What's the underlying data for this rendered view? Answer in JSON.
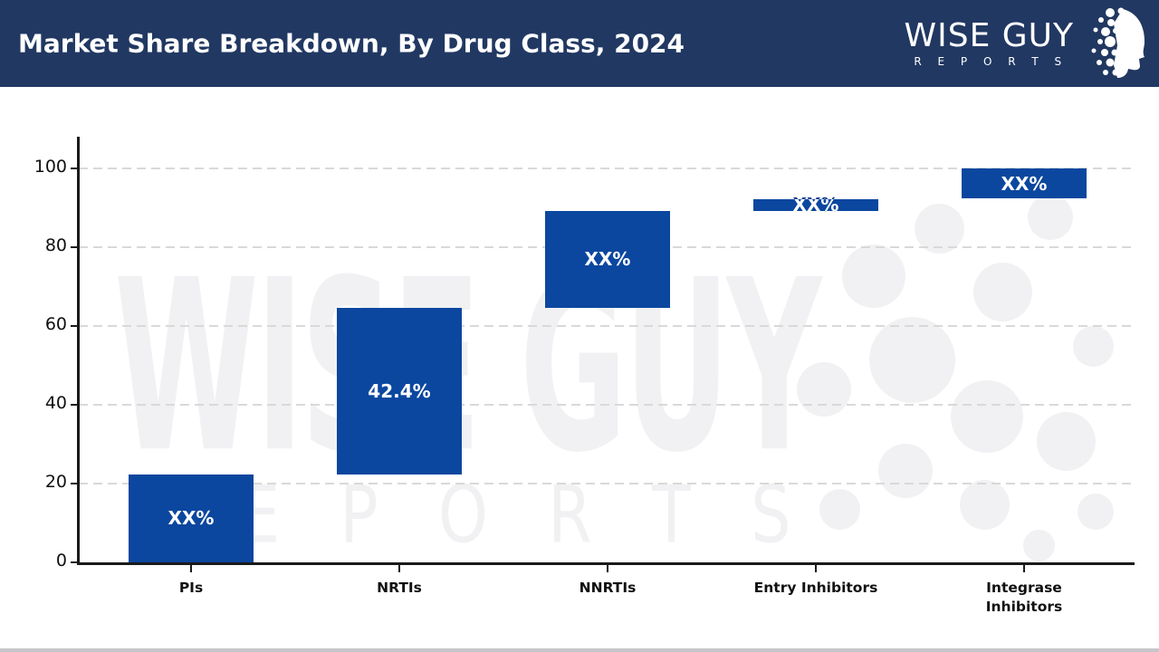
{
  "header": {
    "title": "Market Share Breakdown, By Drug Class, 2024",
    "logo": {
      "line1": "WISE GUY",
      "line2": "R E P O R T S"
    }
  },
  "watermark": {
    "line1": "WISE GUY",
    "line2": "R E P O R T S"
  },
  "chart_data": {
    "type": "bar",
    "subtype": "floating-segment-waterfall",
    "title": "Market Share Breakdown, By Drug Class, 2024",
    "categories": [
      "PIs",
      "NRTIs",
      "NNRTIs",
      "Entry Inhibitors",
      "Integrase Inhibitors"
    ],
    "bars": [
      {
        "category": "PIs",
        "from": 0,
        "to": 22.3,
        "label": "XX%"
      },
      {
        "category": "NRTIs",
        "from": 22.3,
        "to": 64.7,
        "label": "42.4%"
      },
      {
        "category": "NNRTIs",
        "from": 64.7,
        "to": 89.2,
        "label": "XX%"
      },
      {
        "category": "Entry Inhibitors",
        "from": 89.2,
        "to": 92.2,
        "label": "XX%"
      },
      {
        "category": "Integrase Inhibitors",
        "from": 92.4,
        "to": 100,
        "label": "XX%"
      }
    ],
    "yticks": [
      0,
      20,
      40,
      60,
      80,
      100
    ],
    "ytick_labels": [
      "0",
      "20",
      "40",
      "60",
      "80",
      "100"
    ],
    "ylim": [
      0,
      104
    ],
    "xlabel": "",
    "ylabel": "",
    "grid": "horizontal-dashed",
    "legend": "none",
    "bar_color": "#0b479f"
  },
  "colors": {
    "header_bg": "#213862",
    "bar": "#0b479f",
    "bar_label_inside": "#ffffff",
    "bar_label_outside": "#0b3d8f",
    "axis": "#1a1a1a",
    "gridline": "#d9d9d9",
    "watermark": "#f1f1f3",
    "bottom_rule": "#c6c6ca"
  }
}
